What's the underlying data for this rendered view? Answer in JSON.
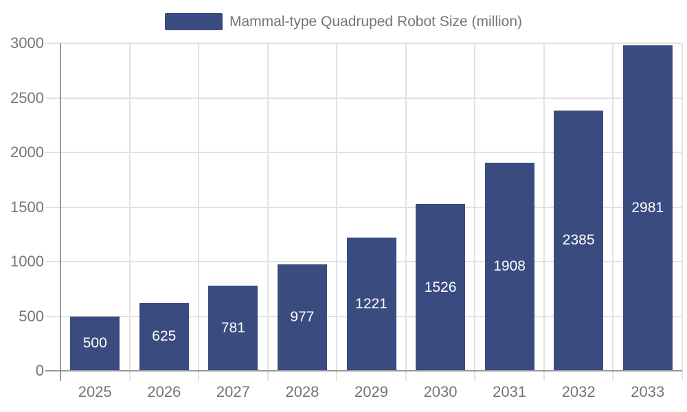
{
  "legend": {
    "label": "Mammal-type Quadruped Robot Size (million)"
  },
  "chart_data": {
    "type": "bar",
    "title": "Mammal-type Quadruped Robot Size (million)",
    "categories": [
      "2025",
      "2026",
      "2027",
      "2028",
      "2029",
      "2030",
      "2031",
      "2032",
      "2033"
    ],
    "values": [
      500,
      625,
      781,
      977,
      1221,
      1526,
      1908,
      2385,
      2981
    ],
    "xlabel": "",
    "ylabel": "",
    "ylim": [
      0,
      3000
    ],
    "yticks": [
      0,
      500,
      1000,
      1500,
      2000,
      2500,
      3000
    ],
    "grid": true,
    "legend_position": "top",
    "value_labels": "inside-center",
    "colors": {
      "bar": "#3A4B80",
      "value_label": "#FFFFFF",
      "axis_text": "#757575",
      "legend_text": "#757575",
      "axis_line": "#999999",
      "gridline": "#E2E2E2",
      "background": "#FFFFFF"
    }
  }
}
